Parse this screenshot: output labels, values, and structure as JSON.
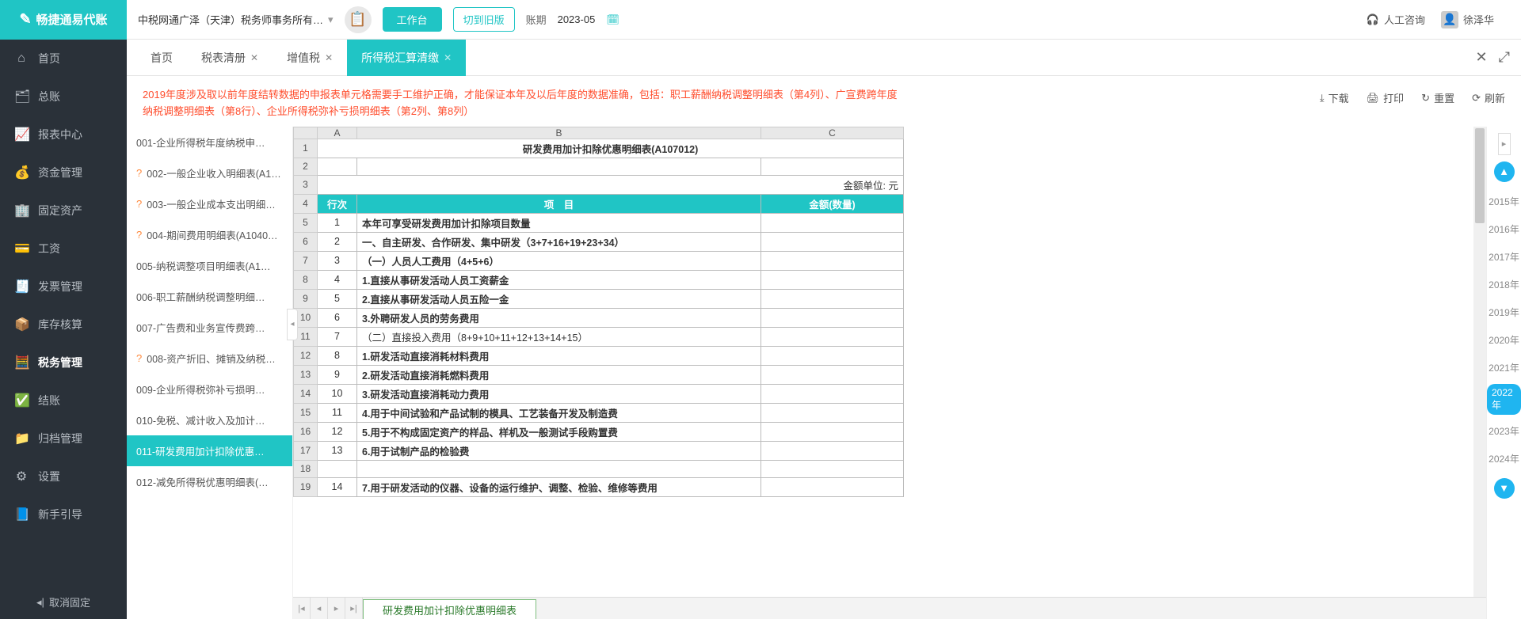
{
  "brand": "畅捷通易代账",
  "top": {
    "org": "中税网通广泽（天津）税务师事务所有…",
    "workbench": "工作台",
    "switchOld": "切到旧版",
    "periodLabel": "账期",
    "periodValue": "2023-05",
    "consult": "人工咨询",
    "user": "徐泽华"
  },
  "sidebar": [
    {
      "icon": "⌂",
      "label": "首页"
    },
    {
      "icon": "🗂",
      "label": "总账"
    },
    {
      "icon": "📈",
      "label": "报表中心"
    },
    {
      "icon": "💰",
      "label": "资金管理"
    },
    {
      "icon": "🏢",
      "label": "固定资产"
    },
    {
      "icon": "💳",
      "label": "工资"
    },
    {
      "icon": "🧾",
      "label": "发票管理"
    },
    {
      "icon": "📦",
      "label": "库存核算"
    },
    {
      "icon": "🧮",
      "label": "税务管理"
    },
    {
      "icon": "✅",
      "label": "结账"
    },
    {
      "icon": "📁",
      "label": "归档管理"
    },
    {
      "icon": "⚙",
      "label": "设置"
    },
    {
      "icon": "📘",
      "label": "新手引导"
    }
  ],
  "sidebarActive": 8,
  "sidebarCancel": "取消固定",
  "tabs": [
    {
      "label": "首页",
      "closable": false
    },
    {
      "label": "税表清册",
      "closable": true
    },
    {
      "label": "增值税",
      "closable": true
    },
    {
      "label": "所得税汇算清缴",
      "closable": true
    }
  ],
  "tabActive": 3,
  "notice": "2019年度涉及取以前年度结转数据的申报表单元格需要手工维护正确，才能保证本年及以后年度的数据准确，包括：职工薪酬纳税调整明细表（第4列）、广宣费跨年度纳税调整明细表（第8行）、企业所得税弥补亏损明细表（第2列、第8列）",
  "toolbar": {
    "download": "下载",
    "print": "打印",
    "reset": "重置",
    "refresh": "刷新"
  },
  "forms": [
    {
      "q": false,
      "label": "001-企业所得税年度纳税申…"
    },
    {
      "q": true,
      "label": "002-一般企业收入明细表(A1…"
    },
    {
      "q": true,
      "label": "003-一般企业成本支出明细…"
    },
    {
      "q": true,
      "label": "004-期间费用明细表(A1040…"
    },
    {
      "q": false,
      "label": "005-纳税调整项目明细表(A1…"
    },
    {
      "q": false,
      "label": "006-职工薪酬纳税调整明细…"
    },
    {
      "q": false,
      "label": "007-广告费和业务宣传费跨…"
    },
    {
      "q": true,
      "label": "008-资产折旧、摊销及纳税…"
    },
    {
      "q": false,
      "label": "009-企业所得税弥补亏损明…"
    },
    {
      "q": false,
      "label": "010-免税、减计收入及加计…"
    },
    {
      "q": false,
      "label": "011-研发费用加计扣除优惠…"
    },
    {
      "q": false,
      "label": "012-减免所得税优惠明细表(…"
    }
  ],
  "formActive": 10,
  "sheet": {
    "title": "研发费用加计扣除优惠明细表(A107012)",
    "unit": "金额单位: 元",
    "cols": {
      "A": "A",
      "B": "B",
      "C": "C"
    },
    "header": {
      "A": "行次",
      "B": "项　目",
      "C": "金额(数量)"
    },
    "rows": [
      {
        "n": 1,
        "idx": "1",
        "item": "本年可享受研发费用加计扣除项目数量",
        "bold": true
      },
      {
        "n": 2,
        "idx": "2",
        "item": "一、自主研发、合作研发、集中研发（3+7+16+19+23+34）",
        "bold": true
      },
      {
        "n": 3,
        "idx": "3",
        "item": "（一）人员人工费用（4+5+6）",
        "bold": true
      },
      {
        "n": 4,
        "idx": "4",
        "item": "1.直接从事研发活动人员工资薪金",
        "bold": true
      },
      {
        "n": 5,
        "idx": "5",
        "item": "2.直接从事研发活动人员五险一金",
        "bold": true
      },
      {
        "n": 6,
        "idx": "6",
        "item": "3.外聘研发人员的劳务费用",
        "bold": true
      },
      {
        "n": 7,
        "idx": "7",
        "item": "（二）直接投入费用（8+9+10+11+12+13+14+15）",
        "bold": false
      },
      {
        "n": 8,
        "idx": "8",
        "item": "1.研发活动直接消耗材料费用",
        "bold": true
      },
      {
        "n": 9,
        "idx": "9",
        "item": "2.研发活动直接消耗燃料费用",
        "bold": true
      },
      {
        "n": 10,
        "idx": "10",
        "item": "3.研发活动直接消耗动力费用",
        "bold": true
      },
      {
        "n": 11,
        "idx": "11",
        "item": "4.用于中间试验和产品试制的模具、工艺装备开发及制造费",
        "bold": true
      },
      {
        "n": 12,
        "idx": "12",
        "item": "5.用于不构成固定资产的样品、样机及一般测试手段购置费",
        "bold": true
      },
      {
        "n": 13,
        "idx": "13",
        "item": "6.用于试制产品的检验费",
        "bold": true
      },
      {
        "n": 14,
        "idx": "",
        "item": "",
        "bold": false
      },
      {
        "n": 15,
        "idx": "14",
        "item": "7.用于研发活动的仪器、设备的运行维护、调整、检验、维修等费用",
        "bold": true
      }
    ],
    "tabName": "研发费用加计扣除优惠明细表"
  },
  "years": [
    "2015年",
    "2016年",
    "2017年",
    "2018年",
    "2019年",
    "2020年",
    "2021年",
    "2022年",
    "2023年",
    "2024年"
  ],
  "yearActive": 7
}
